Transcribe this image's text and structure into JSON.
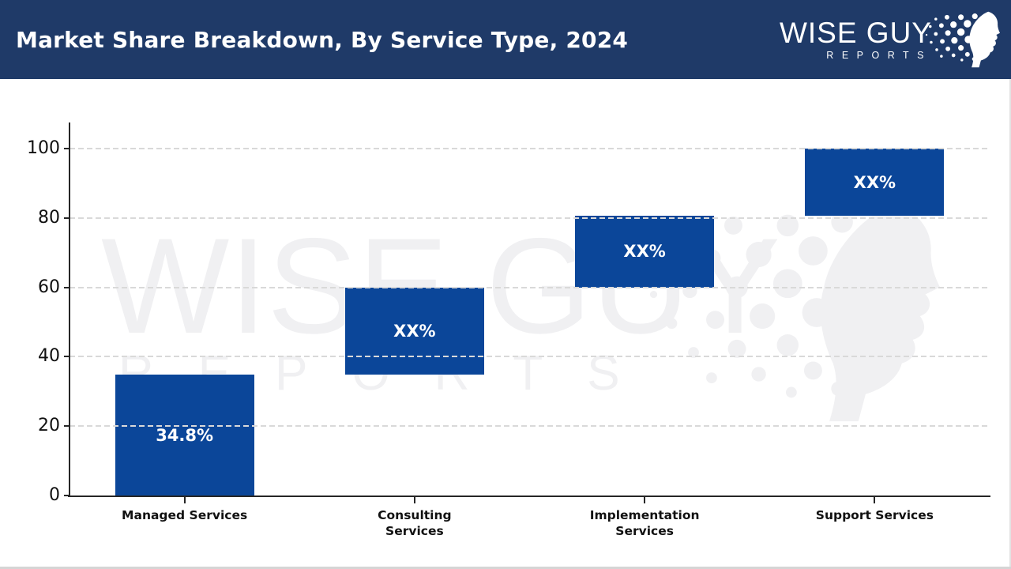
{
  "header": {
    "title": "Market Share Breakdown, By Service Type, 2024",
    "logo": {
      "line1": "WISE GUY",
      "line2": "REPORTS"
    }
  },
  "watermark": {
    "line1": "WISE GUY",
    "line2": "REPORTS"
  },
  "chart_data": {
    "type": "bar",
    "subtype": "waterfall",
    "title": "Market Share Breakdown, By Service Type, 2024",
    "categories": [
      "Managed Services",
      "Consulting\nServices",
      "Implementation\nServices",
      "Support Services"
    ],
    "series": [
      {
        "name": "Market share (%)",
        "segments": [
          {
            "category": "Managed Services",
            "start": 0,
            "end": 34.8,
            "label": "34.8%"
          },
          {
            "category": "Consulting Services",
            "start": 34.8,
            "end": 60.0,
            "label": "XX%"
          },
          {
            "category": "Implementation Services",
            "start": 60.0,
            "end": 80.6,
            "label": "XX%"
          },
          {
            "category": "Support Services",
            "start": 80.6,
            "end": 100.0,
            "label": "XX%"
          }
        ]
      }
    ],
    "xlabel": "",
    "ylabel": "",
    "ylim": [
      0,
      100
    ],
    "yticks": [
      0,
      20,
      40,
      60,
      80,
      100
    ],
    "grid": "horizontal-dashed",
    "legend": "none"
  },
  "colors": {
    "header_bg": "#1f3a68",
    "bar": "#0b4699",
    "grid": "#d9d9d9",
    "bar_label": "#ffffff",
    "axis": "#262626",
    "watermark": "#f0f0f2"
  }
}
